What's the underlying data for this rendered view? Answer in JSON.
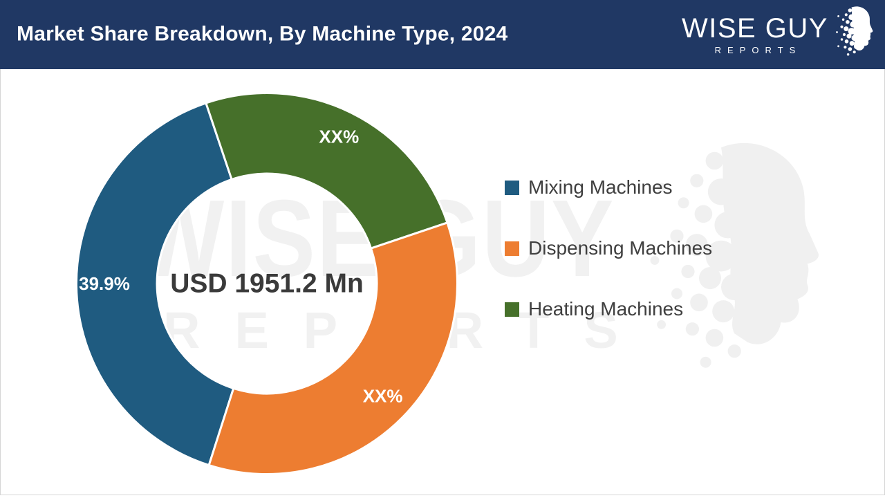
{
  "header": {
    "title": "Market Share Breakdown, By Machine Type, 2024",
    "logo": {
      "name": "WISE GUY",
      "sub": "REPORTS"
    }
  },
  "chart_data": {
    "type": "pie",
    "variant": "donut",
    "title": "Market Share Breakdown, By Machine Type, 2024",
    "center_label": "USD 1951.2 Mn",
    "legend_position": "right",
    "start_angle_deg": 197.7,
    "draw_order": [
      0,
      2,
      1
    ],
    "segments": [
      {
        "label": "Mixing Machines",
        "value": 39.9,
        "display_label": "39.9%",
        "color": "#1F5B80"
      },
      {
        "label": "Dispensing Machines",
        "value": 35.1,
        "display_label": "XX%",
        "color": "#ED7D31"
      },
      {
        "label": "Heating Machines",
        "value": 25.0,
        "display_label": "XX%",
        "color": "#46702A"
      }
    ]
  },
  "watermark": {
    "line1": "WISE GUY",
    "line2": "REPORTS"
  },
  "colors": {
    "header_bg": "#203864",
    "center_text": "#3a3a3a",
    "legend_text": "#3f3f3f"
  }
}
